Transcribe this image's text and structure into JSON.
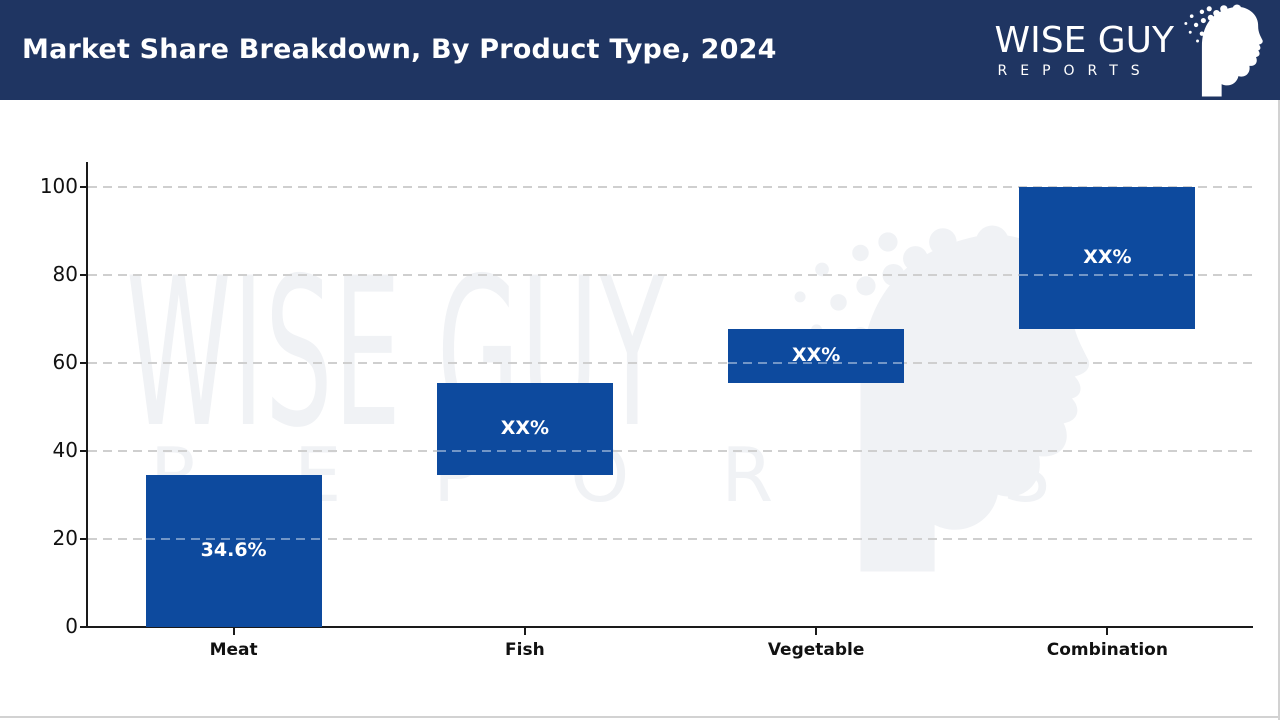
{
  "header": {
    "title": "Market Share Breakdown, By Product Type, 2024",
    "bg_color": "#1f3562",
    "logo": {
      "line1": "WISE GUY",
      "line2": "REPORTS"
    }
  },
  "watermark": {
    "line1": "WISE GUY",
    "line2": "R E P O R T S"
  },
  "chart_data": {
    "type": "bar",
    "subtype": "floating-waterfall",
    "title": "Market Share Breakdown, By Product Type, 2024",
    "categories": [
      "Meat",
      "Fish",
      "Vegetable",
      "Combination"
    ],
    "segments": [
      {
        "category": "Meat",
        "start": 0,
        "end": 34.6,
        "label": "34.6%"
      },
      {
        "category": "Fish",
        "start": 34.6,
        "end": 55.5,
        "label": "XX%"
      },
      {
        "category": "Vegetable",
        "start": 55.5,
        "end": 67.7,
        "label": "XX%"
      },
      {
        "category": "Combination",
        "start": 67.7,
        "end": 100,
        "label": "XX%"
      }
    ],
    "ylim": [
      0,
      100
    ],
    "yticks": [
      0,
      20,
      40,
      60,
      80,
      100
    ],
    "grid": {
      "axis": "y",
      "style": "dashed",
      "color": "#cfcfcf"
    },
    "legend": "none",
    "bar_color": "#0d4a9e",
    "bar_label_color": "#ffffff",
    "axis_color": "#1a1a1a"
  }
}
